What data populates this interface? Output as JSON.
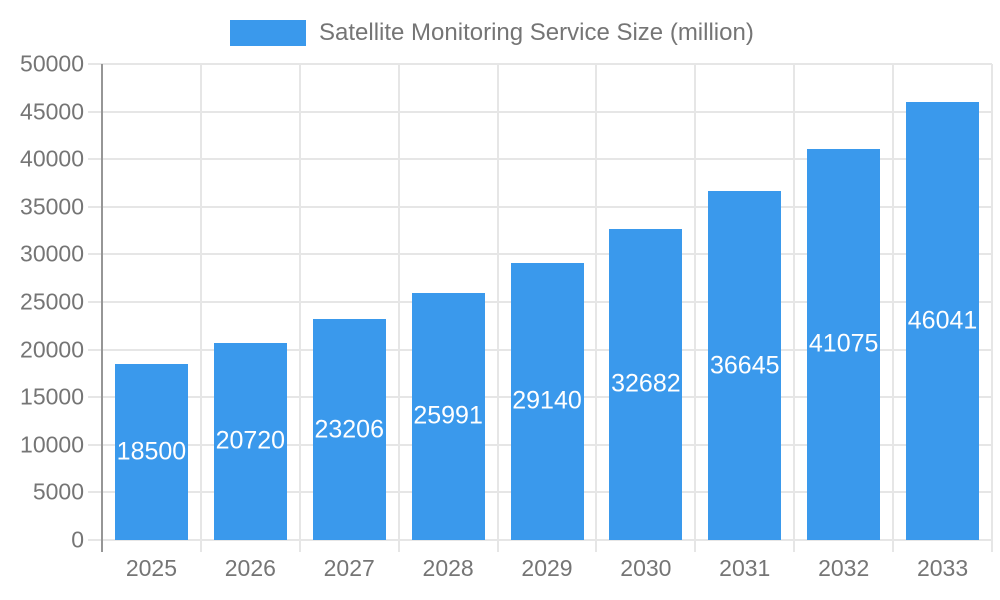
{
  "chart_data": {
    "type": "bar",
    "title": "Satellite Monitoring Service Size (million)",
    "legend": [
      {
        "label": "Satellite Monitoring Service Size (million)",
        "color": "#3A99EC"
      }
    ],
    "legend_position": "top-center",
    "categories": [
      "2025",
      "2026",
      "2027",
      "2028",
      "2029",
      "2030",
      "2031",
      "2032",
      "2033"
    ],
    "values": [
      18500,
      20720,
      23206,
      25991,
      29140,
      32682,
      36645,
      41075,
      46041
    ],
    "xlabel": "",
    "ylabel": "",
    "ylim": [
      0,
      50000
    ],
    "yticks": [
      0,
      5000,
      10000,
      15000,
      20000,
      25000,
      30000,
      35000,
      40000,
      45000,
      50000
    ],
    "grid": true,
    "grid_vertical_at_category_boundaries": true,
    "value_labels_position": "inside-center"
  },
  "colors": {
    "bar": "#3A99EC",
    "grid": "#E6E6E6",
    "axis": "#969696",
    "text": "#757575",
    "value_label": "#FFFFFF",
    "background": "#FFFFFF"
  }
}
